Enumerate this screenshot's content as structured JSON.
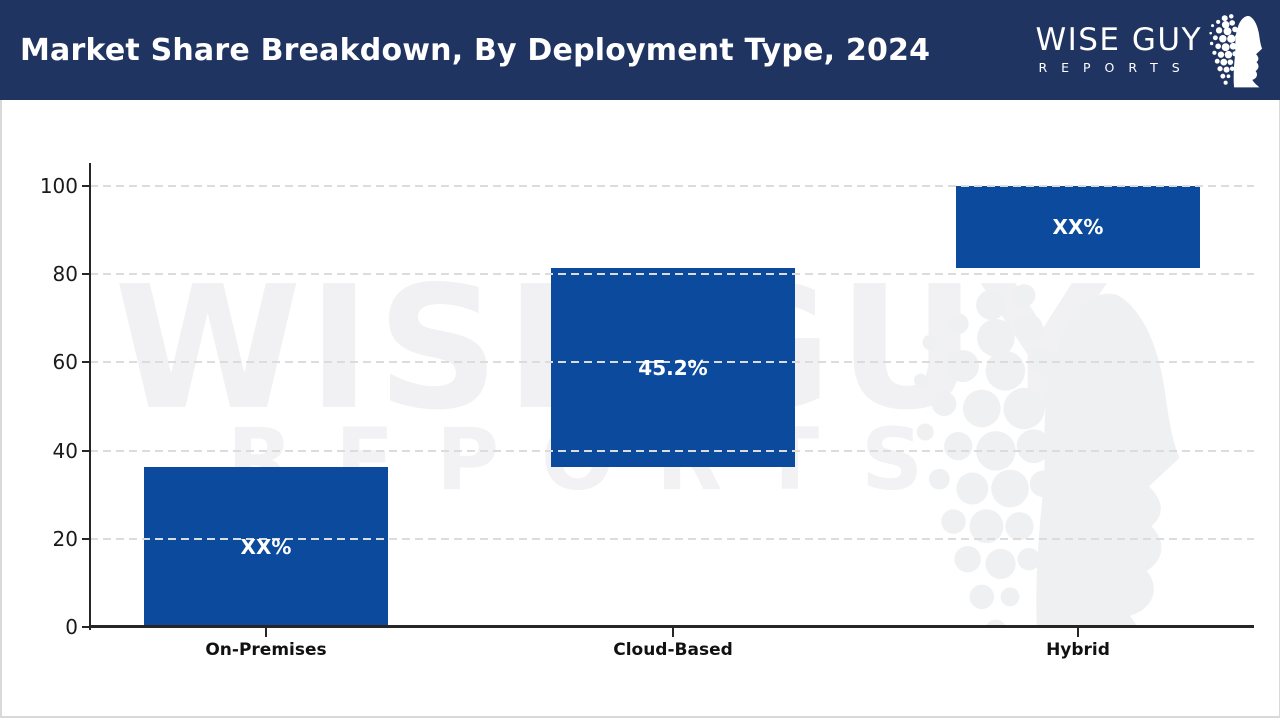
{
  "header": {
    "title": "Market Share Breakdown, By Deployment Type, 2024",
    "logo": {
      "wordmark": "WISE GUY",
      "subtext": "REPORTS"
    }
  },
  "watermark": {
    "wordmark": "WISE GUY",
    "subtext": "REPORTS"
  },
  "chart_data": {
    "type": "bar",
    "subtype": "floating-segment-waterfall",
    "title": "Market Share Breakdown, By Deployment Type, 2024",
    "categories": [
      "On-Premises",
      "Cloud-Based",
      "Hybrid"
    ],
    "segments": [
      {
        "category": "On-Premises",
        "start": 0,
        "end": 36.2,
        "value_label": "XX%"
      },
      {
        "category": "Cloud-Based",
        "start": 36.2,
        "end": 81.4,
        "value_label": "45.2%"
      },
      {
        "category": "Hybrid",
        "start": 81.4,
        "end": 100,
        "value_label": "XX%"
      }
    ],
    "xlabel": "",
    "ylabel": "",
    "ylim": [
      0,
      100
    ],
    "yticks": [
      0,
      20,
      40,
      60,
      80,
      100
    ],
    "grid": {
      "axis": "y",
      "style": "dashed",
      "color": "#dcdcdc"
    },
    "legend": null,
    "colors": {
      "bar": "#0b4a9d",
      "bar_label": "#ffffff",
      "header_bg": "#203461",
      "axis": "#262626"
    }
  }
}
